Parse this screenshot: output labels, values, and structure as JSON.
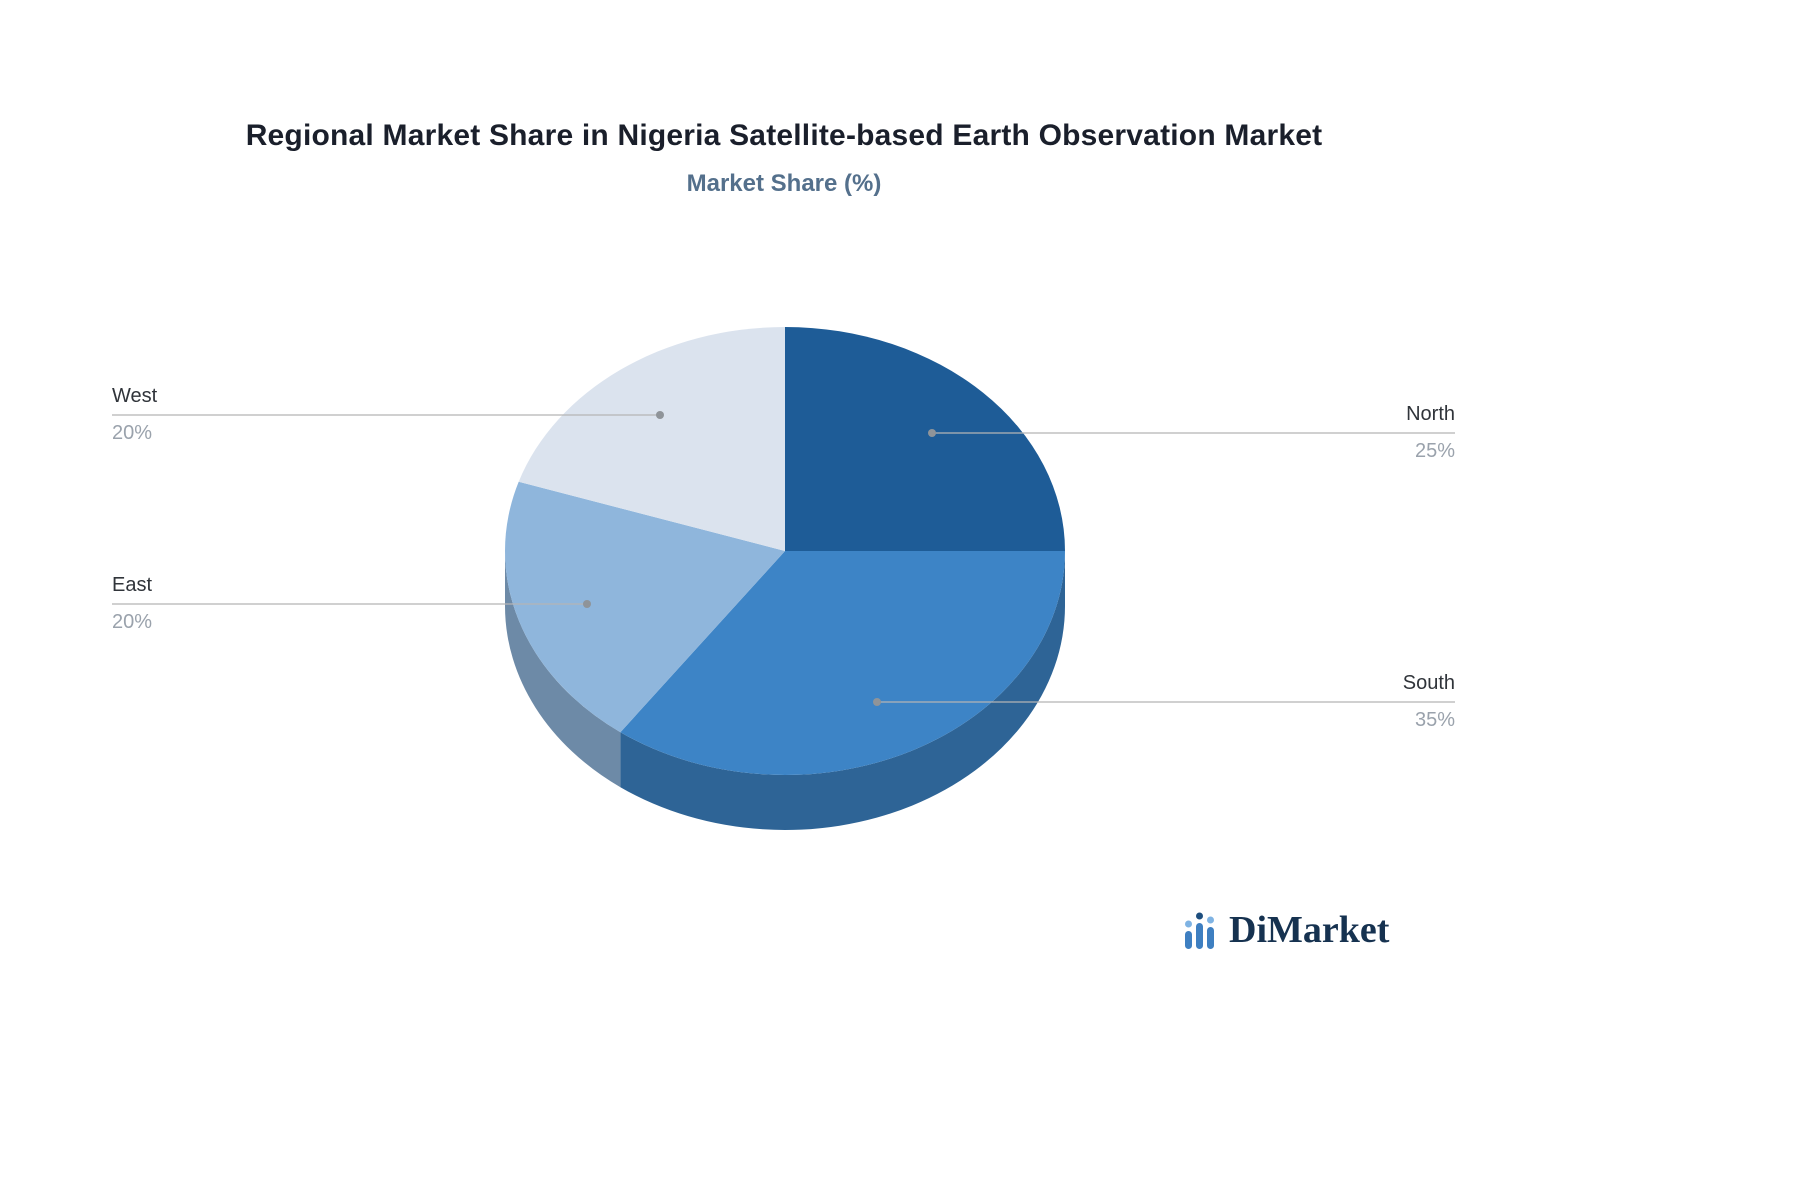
{
  "header": {
    "title": "Regional Market Share in Nigeria Satellite-based Earth Observation Market",
    "subtitle": "Market Share (%)"
  },
  "chart_data": {
    "type": "pie",
    "title": "Regional Market Share in Nigeria Satellite-based Earth Observation Market",
    "subtitle": "Market Share (%)",
    "unit": "%",
    "effect": "3d",
    "legend_position": "none",
    "start_angle_deg": -90,
    "direction": "clockwise",
    "categories": [
      "North",
      "South",
      "East",
      "West"
    ],
    "values": [
      25,
      35,
      20,
      20
    ],
    "colors": {
      "North": "#1e5c97",
      "South": "#3d84c6",
      "East": "#8fb6dc",
      "West": "#dbe3ee"
    },
    "labels": {
      "north": {
        "name": "North",
        "pct": "25%"
      },
      "south": {
        "name": "South",
        "pct": "35%"
      },
      "east": {
        "name": "East",
        "pct": "20%"
      },
      "west": {
        "name": "West",
        "pct": "20%"
      }
    }
  },
  "logo": {
    "text": "DiMarket",
    "brand_dark": "#163250",
    "brand_blue": "#3e7fc1",
    "brand_light_blue": "#7fb3e3"
  }
}
